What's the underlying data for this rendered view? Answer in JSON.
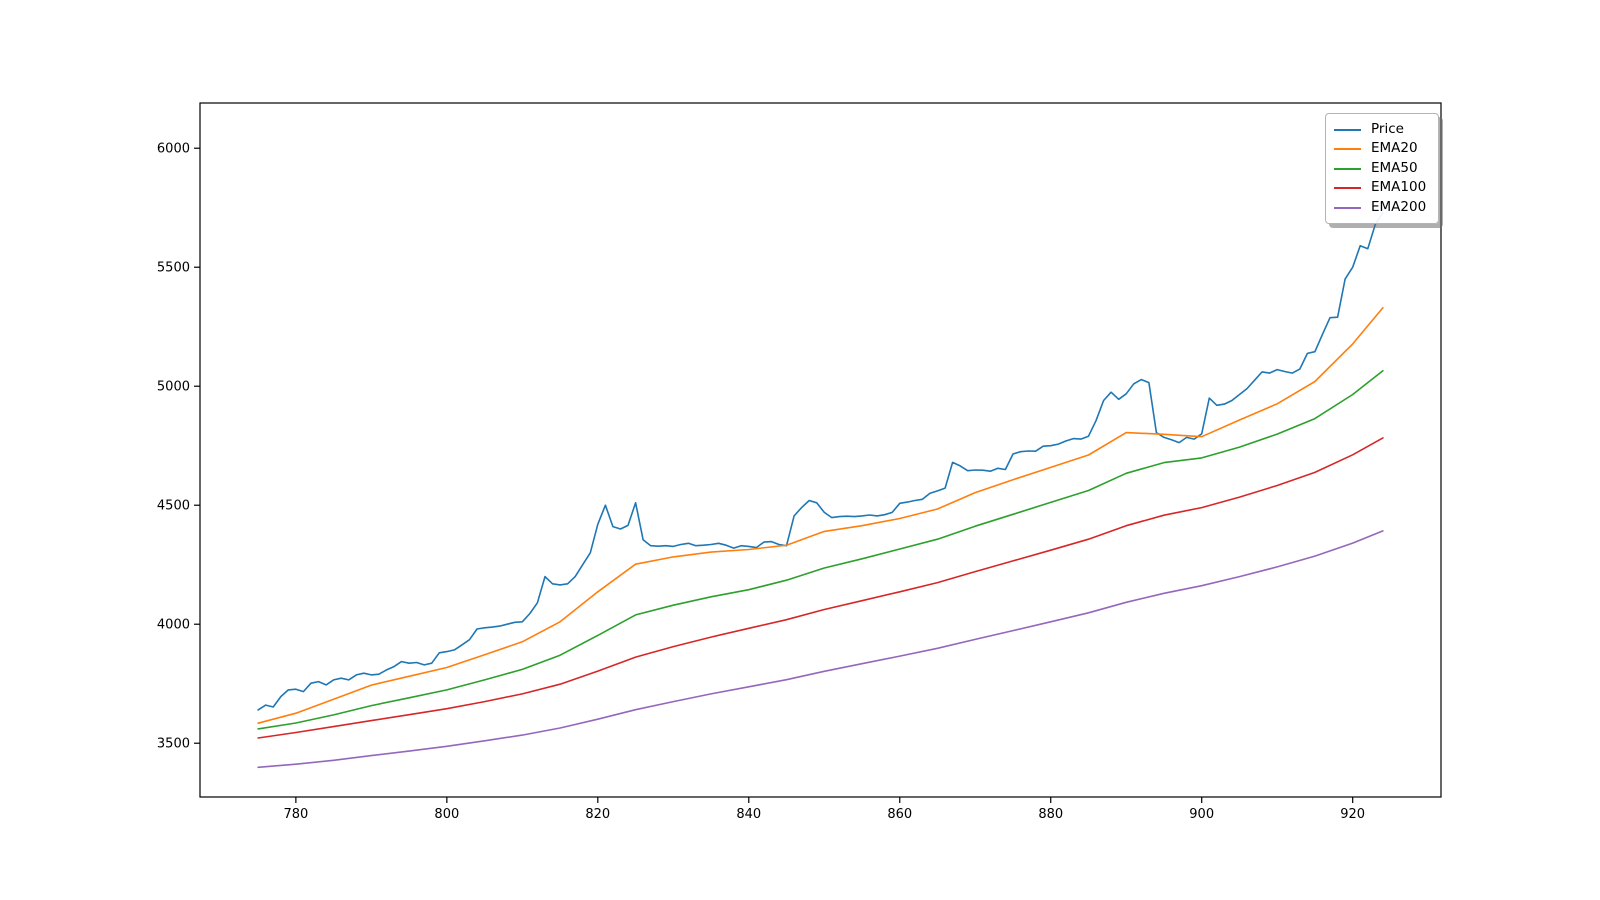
{
  "figure": {
    "background": "#ffffff"
  },
  "axes": {
    "xlim": [
      767.3,
      931.7
    ],
    "ylim": [
      3274,
      6190
    ],
    "x_ticks": [
      "780",
      "800",
      "820",
      "840",
      "860",
      "880",
      "900",
      "920"
    ],
    "x_tick_values": [
      780,
      800,
      820,
      840,
      860,
      880,
      900,
      920
    ],
    "y_ticks": [
      "3500",
      "4000",
      "4500",
      "5000",
      "5500",
      "6000"
    ],
    "y_tick_values": [
      3500,
      4000,
      4500,
      5000,
      5500,
      6000
    ],
    "spine_color": "#000000",
    "grid": false
  },
  "legend": {
    "position": "upper right"
  },
  "chart_data": {
    "type": "line",
    "title": "",
    "xlabel": "",
    "ylabel": "",
    "grid": false,
    "legend_position": "upper right",
    "xlim": [
      767.3,
      931.7
    ],
    "ylim": [
      3274,
      6190
    ],
    "series": [
      {
        "name": "Price",
        "color": "#1f77b4",
        "x": [
          775,
          776,
          777,
          778,
          779,
          780,
          781,
          782,
          783,
          784,
          785,
          786,
          787,
          788,
          789,
          790,
          791,
          792,
          793,
          794,
          795,
          796,
          797,
          798,
          799,
          800,
          801,
          802,
          803,
          804,
          805,
          806,
          807,
          808,
          809,
          810,
          811,
          812,
          813,
          814,
          815,
          816,
          817,
          818,
          819,
          820,
          821,
          822,
          823,
          824,
          825,
          826,
          827,
          828,
          829,
          830,
          831,
          832,
          833,
          834,
          835,
          836,
          837,
          838,
          839,
          840,
          841,
          842,
          843,
          844,
          845,
          846,
          847,
          848,
          849,
          850,
          851,
          852,
          853,
          854,
          855,
          856,
          857,
          858,
          859,
          860,
          861,
          862,
          863,
          864,
          865,
          866,
          867,
          868,
          869,
          870,
          871,
          872,
          873,
          874,
          875,
          876,
          877,
          878,
          879,
          880,
          881,
          882,
          883,
          884,
          885,
          886,
          887,
          888,
          889,
          890,
          891,
          892,
          893,
          894,
          895,
          896,
          897,
          898,
          899,
          900,
          901,
          902,
          903,
          904,
          905,
          906,
          907,
          908,
          909,
          910,
          911,
          912,
          913,
          914,
          915,
          916,
          917,
          918,
          919,
          920,
          921,
          922,
          923,
          924
        ],
        "values": [
          3640,
          3660,
          3652,
          3696,
          3724,
          3727,
          3717,
          3752,
          3759,
          3745,
          3766,
          3773,
          3766,
          3787,
          3794,
          3787,
          3790,
          3808,
          3822,
          3843,
          3836,
          3839,
          3829,
          3836,
          3880,
          3885,
          3892,
          3913,
          3935,
          3980,
          3985,
          3988,
          3992,
          4000,
          4008,
          4010,
          4045,
          4090,
          4200,
          4170,
          4165,
          4170,
          4200,
          4250,
          4300,
          4420,
          4500,
          4410,
          4400,
          4415,
          4510,
          4355,
          4330,
          4328,
          4330,
          4327,
          4335,
          4340,
          4330,
          4332,
          4335,
          4340,
          4332,
          4320,
          4330,
          4327,
          4322,
          4345,
          4347,
          4335,
          4330,
          4455,
          4490,
          4520,
          4510,
          4470,
          4448,
          4452,
          4454,
          4452,
          4455,
          4459,
          4455,
          4460,
          4470,
          4508,
          4513,
          4520,
          4525,
          4550,
          4560,
          4572,
          4680,
          4665,
          4645,
          4648,
          4647,
          4643,
          4655,
          4650,
          4715,
          4725,
          4728,
          4727,
          4748,
          4750,
          4757,
          4770,
          4780,
          4778,
          4790,
          4855,
          4940,
          4975,
          4945,
          4968,
          5010,
          5028,
          5015,
          4805,
          4785,
          4775,
          4763,
          4785,
          4778,
          4800,
          4950,
          4920,
          4925,
          4940,
          4965,
          4990,
          5025,
          5060,
          5055,
          5070,
          5062,
          5055,
          5072,
          5138,
          5145,
          5218,
          5288,
          5290,
          5450,
          5500,
          5590,
          5578,
          5680,
          5730
        ]
      },
      {
        "name": "EMA20",
        "color": "#ff7f0e",
        "x": [
          775,
          780,
          785,
          790,
          795,
          800,
          805,
          810,
          815,
          820,
          825,
          830,
          835,
          840,
          845,
          850,
          855,
          860,
          865,
          870,
          875,
          880,
          885,
          890,
          895,
          900,
          905,
          910,
          915,
          920,
          924
        ],
        "values": [
          3584,
          3626,
          3685,
          3744,
          3781,
          3818,
          3872,
          3926,
          4010,
          4136,
          4252,
          4283,
          4303,
          4314,
          4332,
          4390,
          4414,
          4444,
          4484,
          4553,
          4607,
          4659,
          4711,
          4805,
          4798,
          4788,
          4858,
          4926,
          5020,
          5178,
          5330
        ]
      },
      {
        "name": "EMA50",
        "color": "#2ca02c",
        "x": [
          775,
          780,
          785,
          790,
          795,
          800,
          805,
          810,
          815,
          820,
          825,
          830,
          835,
          840,
          845,
          850,
          855,
          860,
          865,
          870,
          875,
          880,
          885,
          890,
          895,
          900,
          905,
          910,
          915,
          920,
          924
        ],
        "values": [
          3560,
          3585,
          3619,
          3658,
          3691,
          3724,
          3766,
          3810,
          3870,
          3953,
          4039,
          4080,
          4115,
          4145,
          4185,
          4236,
          4275,
          4316,
          4357,
          4412,
          4462,
          4512,
          4562,
          4634,
          4679,
          4699,
          4744,
          4799,
          4864,
          4965,
          5065
        ]
      },
      {
        "name": "EMA100",
        "color": "#d62728",
        "x": [
          775,
          780,
          785,
          790,
          795,
          800,
          805,
          810,
          815,
          820,
          825,
          830,
          835,
          840,
          845,
          850,
          855,
          860,
          865,
          870,
          875,
          880,
          885,
          890,
          895,
          900,
          905,
          910,
          915,
          920,
          924
        ],
        "values": [
          3522,
          3545,
          3570,
          3595,
          3620,
          3645,
          3675,
          3707,
          3748,
          3803,
          3862,
          3906,
          3946,
          3983,
          4019,
          4062,
          4099,
          4136,
          4175,
          4221,
          4266,
          4311,
          4357,
          4414,
          4458,
          4490,
          4534,
          4583,
          4638,
          4712,
          4783
        ]
      },
      {
        "name": "EMA200",
        "color": "#9467bd",
        "x": [
          775,
          780,
          785,
          790,
          795,
          800,
          805,
          810,
          815,
          820,
          825,
          830,
          835,
          840,
          845,
          850,
          855,
          860,
          865,
          870,
          875,
          880,
          885,
          890,
          895,
          900,
          905,
          910,
          915,
          920,
          924
        ],
        "values": [
          3399,
          3412,
          3428,
          3448,
          3467,
          3487,
          3510,
          3534,
          3564,
          3601,
          3641,
          3675,
          3707,
          3737,
          3767,
          3802,
          3834,
          3866,
          3899,
          3936,
          3973,
          4010,
          4048,
          4092,
          4130,
          4162,
          4200,
          4241,
          4286,
          4341,
          4392
        ]
      }
    ]
  }
}
